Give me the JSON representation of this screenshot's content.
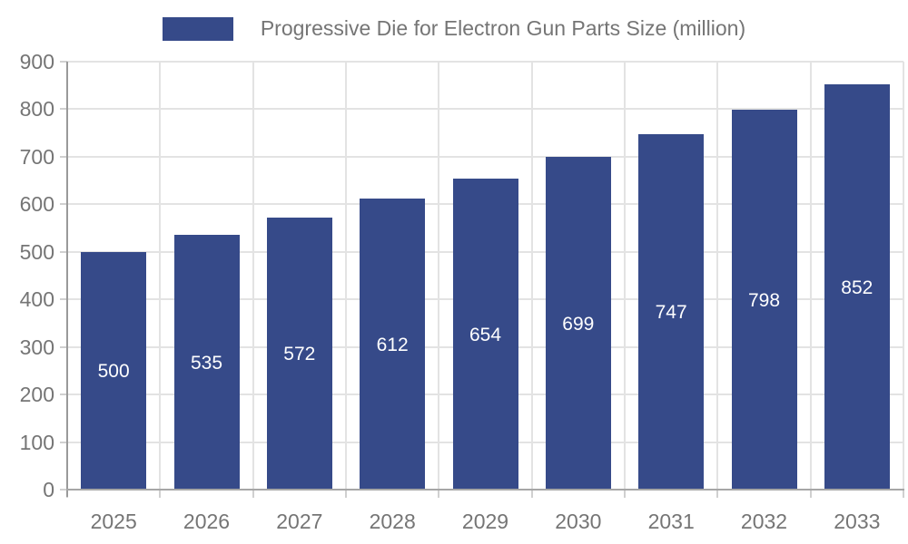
{
  "legend": {
    "label": "Progressive Die for Electron Gun Parts Size (million)"
  },
  "chart_data": {
    "type": "bar",
    "title": "Progressive Die for Electron Gun Parts Size (million)",
    "categories": [
      "2025",
      "2026",
      "2027",
      "2028",
      "2029",
      "2030",
      "2031",
      "2032",
      "2033"
    ],
    "values": [
      500,
      535,
      572,
      612,
      654,
      699,
      747,
      798,
      852
    ],
    "xlabel": "",
    "ylabel": "",
    "ylim": [
      0,
      900
    ],
    "ytick_step": 100,
    "ytick_labels": [
      "0",
      "100",
      "200",
      "300",
      "400",
      "500",
      "600",
      "700",
      "800",
      "900"
    ],
    "grid": true,
    "legend_position": "top",
    "bar_color": "#364a89",
    "value_label_color": "#ffffff",
    "axis_text_color": "#757575",
    "gridline_color": "#e3e3e3"
  }
}
